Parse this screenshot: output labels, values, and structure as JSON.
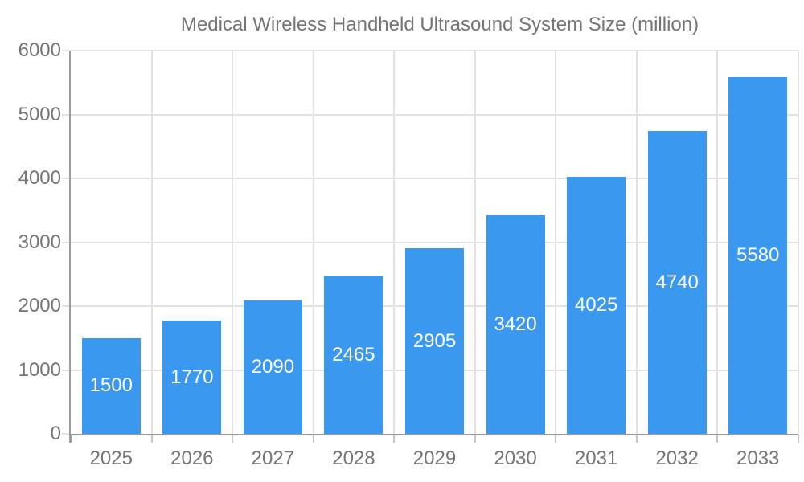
{
  "legend": {
    "label": "Medical Wireless Handheld Ultrasound System Size (million)"
  },
  "chart_data": {
    "type": "bar",
    "title": "Medical Wireless Handheld Ultrasound System Size (million)",
    "categories": [
      "2025",
      "2026",
      "2027",
      "2028",
      "2029",
      "2030",
      "2031",
      "2032",
      "2033"
    ],
    "values": [
      1500,
      1770,
      2090,
      2465,
      2905,
      3420,
      4025,
      4740,
      5580
    ],
    "xlabel": "",
    "ylabel": "",
    "ylim": [
      0,
      6000
    ],
    "y_ticks": [
      0,
      1000,
      2000,
      3000,
      4000,
      5000,
      6000
    ],
    "grid": true,
    "legend_position": "top-center",
    "value_labels": "inside-center",
    "colors": {
      "bar": "#3a99ee",
      "value_label": "#ffffff",
      "axis_line": "#9b9b9b",
      "grid_line": "#e2e2e2",
      "tick": "#c6c6c6",
      "axis_text": "#757575"
    }
  }
}
